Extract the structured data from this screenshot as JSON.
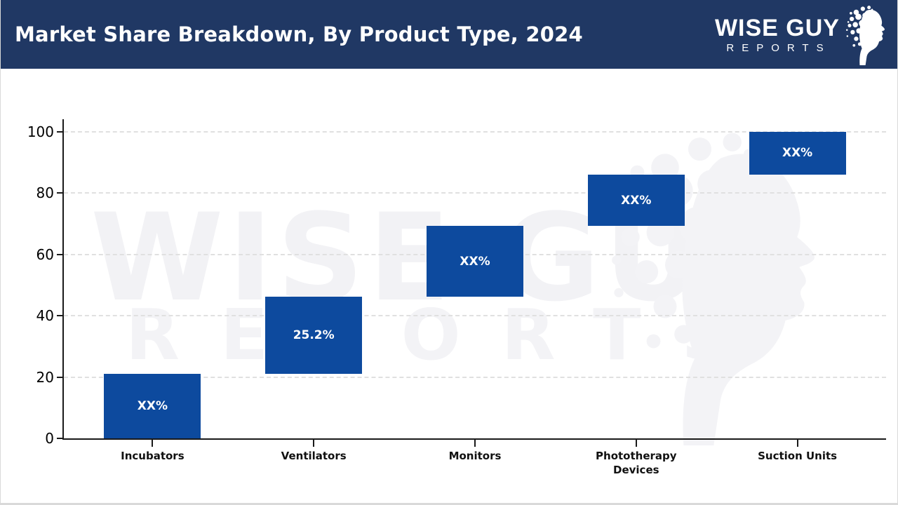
{
  "header": {
    "title": "Market Share Breakdown, By Product Type, 2024",
    "bg_color": "#203864",
    "logo": {
      "line1": "WISE GUY",
      "line2": "REPORTS"
    }
  },
  "watermark": {
    "line1": "WISE GUY",
    "line2": "REPORTS"
  },
  "chart_data": {
    "type": "bar",
    "subtype": "waterfall",
    "title": "Market Share Breakdown, By Product Type, 2024",
    "xlabel": "",
    "ylabel": "",
    "categories": [
      "Incubators",
      "Ventilators",
      "Monitors",
      "Phototherapy Devices",
      "Suction Units"
    ],
    "segments": [
      {
        "label": "XX%",
        "start": 0,
        "end": 21
      },
      {
        "label": "25.2%",
        "start": 21,
        "end": 46.2
      },
      {
        "label": "XX%",
        "start": 46.2,
        "end": 69.2
      },
      {
        "label": "XX%",
        "start": 69.2,
        "end": 86
      },
      {
        "label": "XX%",
        "start": 86,
        "end": 100
      }
    ],
    "values": [
      21,
      25.2,
      23,
      16.8,
      14
    ],
    "cumulative": [
      21,
      46.2,
      69.2,
      86,
      100
    ],
    "yticks": [
      0,
      20,
      40,
      60,
      80,
      100
    ],
    "ylim": [
      0,
      104
    ],
    "grid": "horizontal-dashed",
    "legend": "none",
    "bar_color": "#0d4a9e",
    "bar_label_color": "#ffffff",
    "axis_color": "#1a1a1a",
    "grid_color": "#e0e0e0"
  }
}
